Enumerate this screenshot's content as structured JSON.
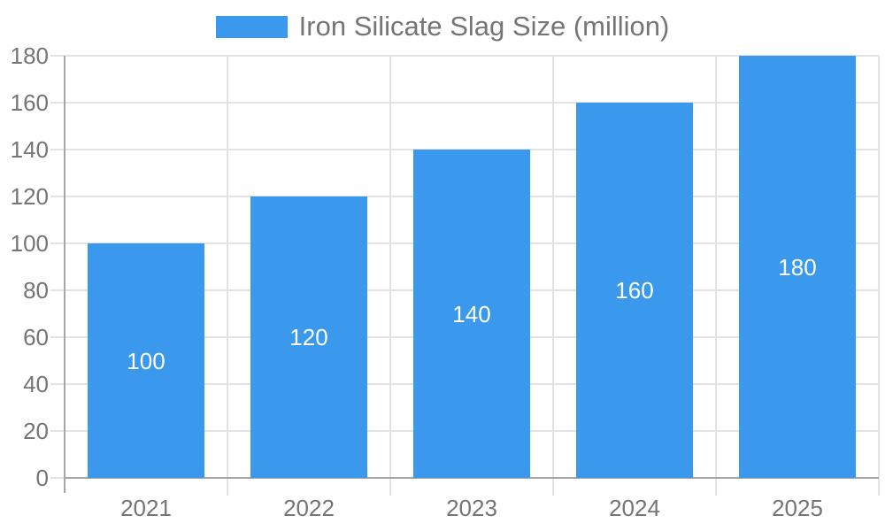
{
  "chart_data": {
    "type": "bar",
    "series_label": "Iron Silicate Slag Size (million)",
    "categories": [
      "2021",
      "2022",
      "2023",
      "2024",
      "2025"
    ],
    "values": [
      100,
      120,
      140,
      160,
      180
    ],
    "y_ticks": [
      0,
      20,
      40,
      60,
      80,
      100,
      120,
      140,
      160,
      180
    ],
    "ylim": [
      0,
      180
    ],
    "xlabel": "",
    "ylabel": "",
    "grid": true,
    "legend_position": "top-center",
    "colors": {
      "bar": "#3A99EC",
      "bar_label": "#FFFFFF",
      "axis_text": "#757575",
      "gridline": "#E3E3E3",
      "axis_line": "#A6A6A6",
      "background": "#FFFFFF"
    }
  }
}
